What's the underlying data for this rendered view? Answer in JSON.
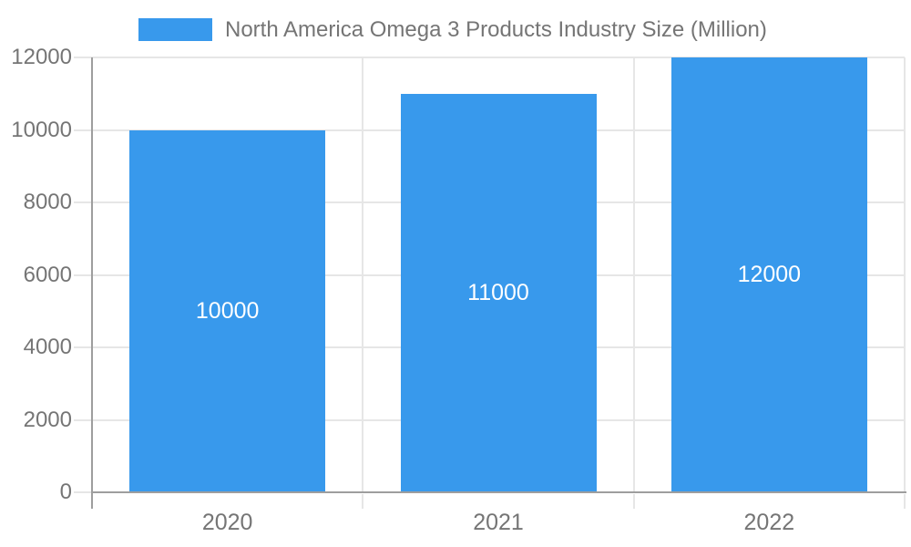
{
  "chart_data": {
    "type": "bar",
    "title": "North America Omega 3 Products Industry Size (Million)",
    "categories": [
      "2020",
      "2021",
      "2022"
    ],
    "values": [
      10000,
      11000,
      12000
    ],
    "bar_labels": [
      "10000",
      "11000",
      "12000"
    ],
    "xlabel": "",
    "ylabel": "",
    "ylim": [
      0,
      12000
    ],
    "yticks": [
      0,
      2000,
      4000,
      6000,
      8000,
      10000,
      12000
    ],
    "grid": true,
    "legend_position": "top",
    "bar_label_position": "center-inside",
    "colors": {
      "bar": "#3899EC",
      "grid": "#E6E6E6",
      "axis": "#9E9E9E",
      "text": "#757575",
      "bar_label": "#FFFFFF",
      "background": "#FFFFFF"
    }
  }
}
